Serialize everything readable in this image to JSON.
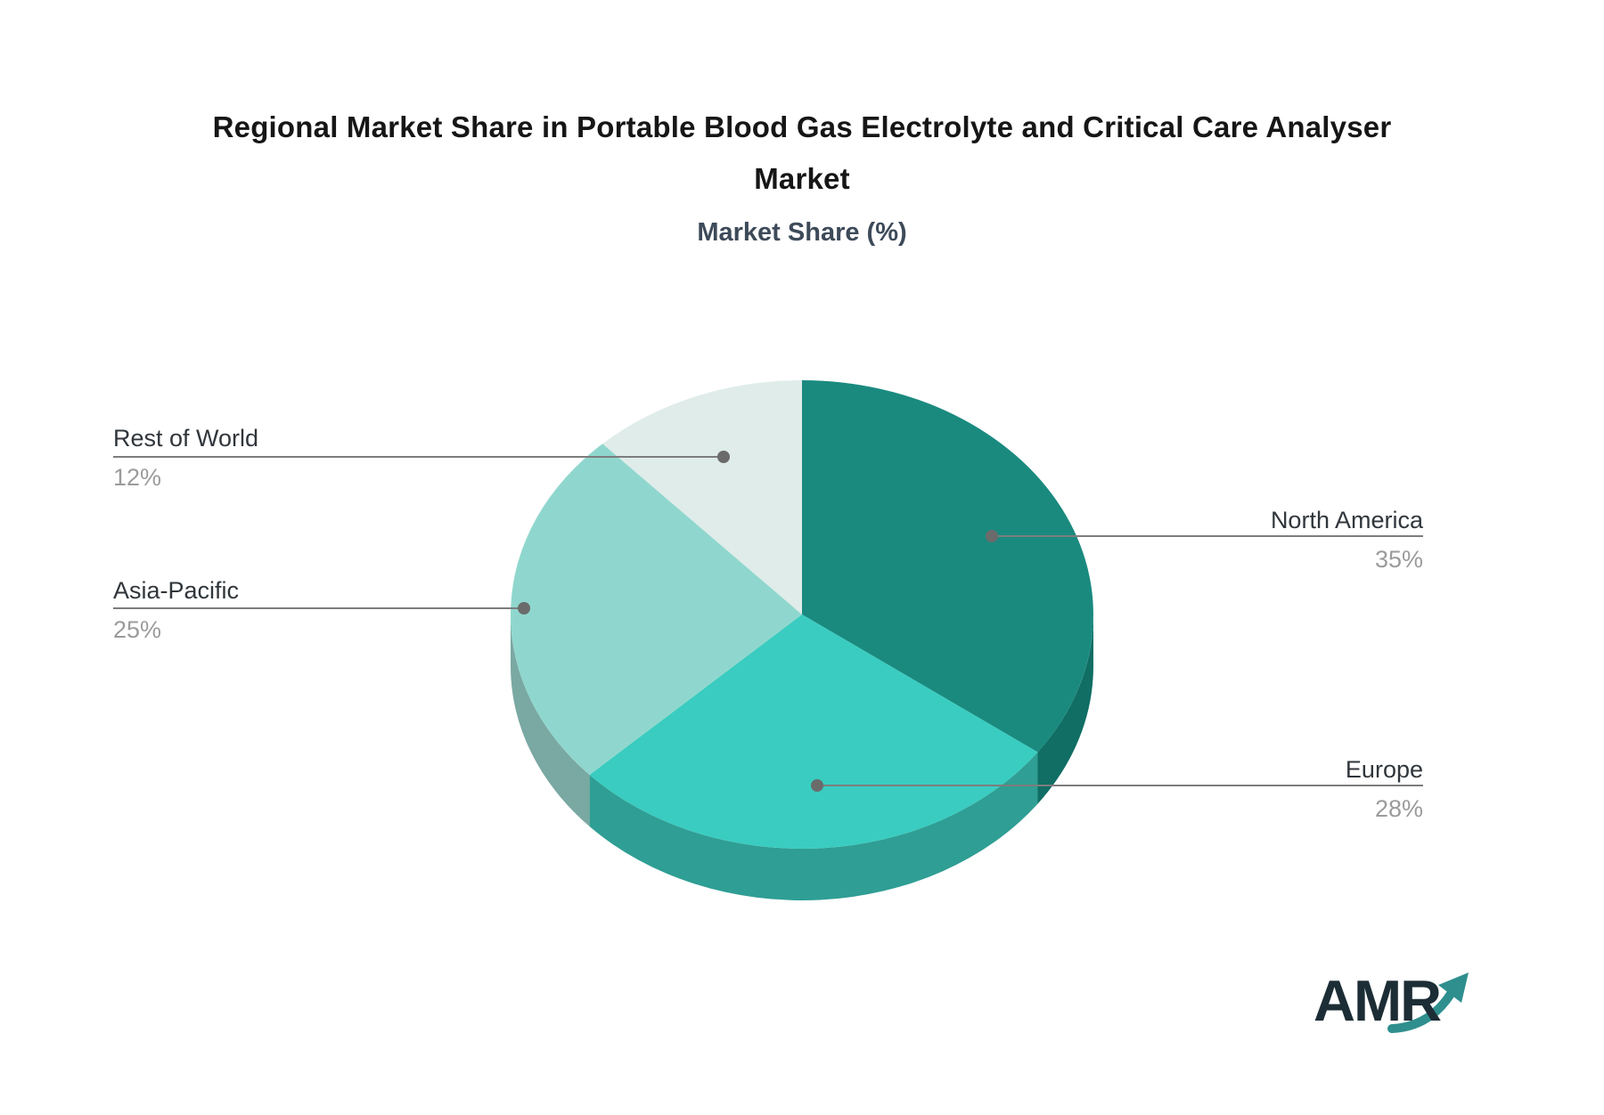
{
  "header": {
    "title_line1": "Regional Market Share in Portable Blood Gas Electrolyte and Critical Care Analyser",
    "title_line2": "Market",
    "subtitle": "Market Share (%)"
  },
  "chart_data": {
    "type": "pie",
    "title": "Regional Market Share in Portable Blood Gas Electrolyte and Critical Care Analyser Market",
    "subtitle": "Market Share (%)",
    "unit": "%",
    "style": "3d-pie",
    "start_angle_deg": 0,
    "direction": "clockwise",
    "legend_position": "none",
    "label_style": "leader-lines",
    "slices": [
      {
        "label": "North America",
        "value": 35,
        "display": "35%",
        "color": "#1A8A7F",
        "side_color": "#106E64"
      },
      {
        "label": "Europe",
        "value": 28,
        "display": "28%",
        "color": "#3ACCC0",
        "side_color": "#2F9E94"
      },
      {
        "label": "Asia-Pacific",
        "value": 25,
        "display": "25%",
        "color": "#8FD7CE",
        "side_color": "#7AA8A2"
      },
      {
        "label": "Rest of World",
        "value": 12,
        "display": "12%",
        "color": "#DFECEA",
        "side_color": "#C8DBD8"
      }
    ]
  },
  "logo": {
    "text": "AMR"
  },
  "colors": {
    "background": "#ffffff",
    "title": "#161616",
    "subtitle": "#3d4a59",
    "label_text": "#30363b",
    "percent_text": "#9b9b9b",
    "leader_line": "#7d7d7d",
    "leader_dot": "#6b6b6b",
    "logo_text": "#1d2d36",
    "logo_arrow": "#2e8f8e"
  }
}
